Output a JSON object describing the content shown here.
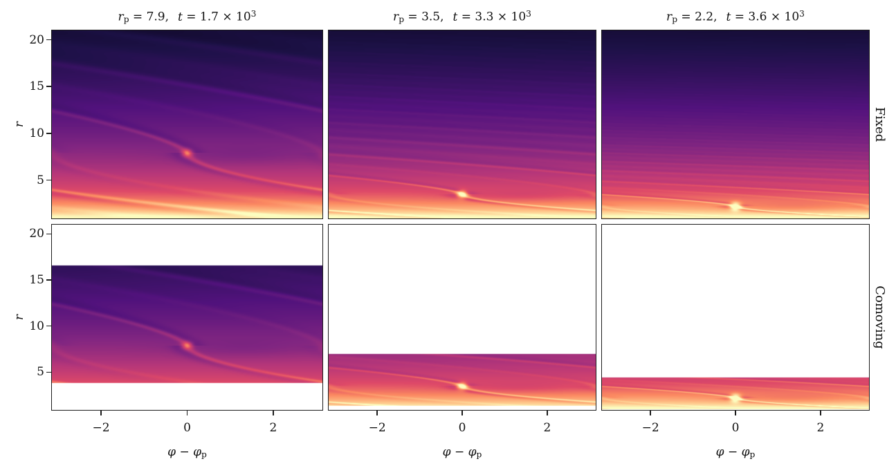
{
  "figure": {
    "background": "#ffffff",
    "text_color": "#111111",
    "spine_color": "#1b1b1b"
  },
  "row_labels": [
    "Fixed",
    "Comoving"
  ],
  "columns": [
    {
      "title_segments": [
        {
          "t": "r",
          "s": "i"
        },
        {
          "t": "p",
          "s": "sub"
        },
        {
          "t": " = 7.9,",
          "s": ""
        },
        {
          "t": "t",
          "s": "i gap"
        },
        {
          "t": " = 1.7 × 10",
          "s": ""
        },
        {
          "t": "3",
          "s": "sup"
        }
      ]
    },
    {
      "title_segments": [
        {
          "t": "r",
          "s": "i"
        },
        {
          "t": "p",
          "s": "sub"
        },
        {
          "t": " = 3.5,",
          "s": ""
        },
        {
          "t": "t",
          "s": "i gap"
        },
        {
          "t": " = 3.3 × 10",
          "s": ""
        },
        {
          "t": "3",
          "s": "sup"
        }
      ]
    },
    {
      "title_segments": [
        {
          "t": "r",
          "s": "i"
        },
        {
          "t": "p",
          "s": "sub"
        },
        {
          "t": " = 2.2,",
          "s": ""
        },
        {
          "t": "t",
          "s": "i gap"
        },
        {
          "t": " = 3.6 × 10",
          "s": ""
        },
        {
          "t": "3",
          "s": "sup"
        }
      ]
    }
  ],
  "axes": {
    "x_tick_labels": [
      "−2",
      "0",
      "2"
    ],
    "x_tick_values": [
      -2,
      0,
      2
    ],
    "y_tick_labels": [
      "20",
      "15",
      "10",
      "5"
    ],
    "y_tick_values": [
      20,
      15,
      10,
      5
    ],
    "xlabel_segments": [
      {
        "t": "φ",
        "s": "i"
      },
      {
        "t": " − ",
        "s": ""
      },
      {
        "t": "φ",
        "s": "i"
      },
      {
        "t": "p",
        "s": "sub"
      }
    ],
    "ylabel_segments": [
      {
        "t": "r",
        "s": "i"
      }
    ],
    "xlim": [
      -3.1416,
      3.1416
    ],
    "ylim": [
      0.9,
      21.0
    ]
  },
  "chart_data": {
    "type": "heatmap",
    "layout": "2 rows x 3 columns, shared x and y axes",
    "colormap": "magma",
    "colormap_stops": [
      {
        "pos": 0.0,
        "hex": "#000004"
      },
      {
        "pos": 0.125,
        "hex": "#1d1147"
      },
      {
        "pos": 0.25,
        "hex": "#51127c"
      },
      {
        "pos": 0.375,
        "hex": "#822681"
      },
      {
        "pos": 0.5,
        "hex": "#b73779"
      },
      {
        "pos": 0.625,
        "hex": "#de4968"
      },
      {
        "pos": 0.75,
        "hex": "#fb8861"
      },
      {
        "pos": 0.875,
        "hex": "#fec488"
      },
      {
        "pos": 1.0,
        "hex": "#fcfdbf"
      }
    ],
    "quantity": "disc surface density: bright (cream/orange) at small r, dark (black/purple) at large r; bright spiral wake launched by a planet at phi - phi_p = 0, r = r_p",
    "xlabel": "phi - phi_p",
    "ylabel": "r",
    "xlim": [
      -3.1416,
      3.1416
    ],
    "ylim": [
      0.9,
      21.0
    ],
    "x_ticks": [
      -2,
      0,
      2
    ],
    "y_ticks": [
      5,
      10,
      15,
      20
    ],
    "rows": [
      "Fixed",
      "Comoving"
    ],
    "panels": [
      {
        "row": "Fixed",
        "column": 0,
        "r_p": 7.9,
        "t": 1700,
        "r_shown": [
          0.9,
          21.0
        ],
        "wake_outer_reach_r": 12.4,
        "wake_inner_reach_r": 4.0
      },
      {
        "row": "Fixed",
        "column": 1,
        "r_p": 3.5,
        "t": 3300,
        "r_shown": [
          0.9,
          21.0
        ],
        "wake_outer_reach_r": 5.5,
        "wake_inner_reach_r": 1.8
      },
      {
        "row": "Fixed",
        "column": 2,
        "r_p": 2.2,
        "t": 3600,
        "r_shown": [
          0.9,
          21.0
        ],
        "wake_outer_reach_r": 3.45,
        "wake_inner_reach_r": 1.1
      },
      {
        "row": "Comoving",
        "column": 0,
        "r_p": 7.9,
        "t": 1700,
        "r_shown": [
          3.8,
          16.6
        ]
      },
      {
        "row": "Comoving",
        "column": 1,
        "r_p": 3.5,
        "t": 3300,
        "r_shown": [
          1.35,
          7.0
        ]
      },
      {
        "row": "Comoving",
        "column": 2,
        "r_p": 2.2,
        "t": 3600,
        "r_shown": [
          1.0,
          4.45
        ]
      }
    ],
    "planet_position": {
      "phi_minus_phi_p": 0
    }
  }
}
